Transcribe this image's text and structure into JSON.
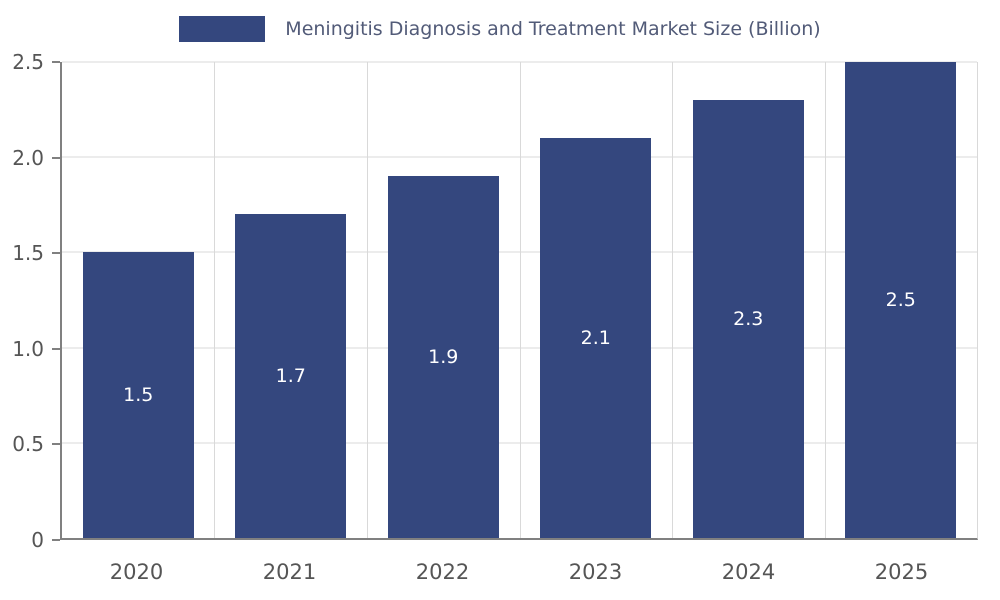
{
  "chart_data": {
    "type": "bar",
    "title": "Meningitis Diagnosis and Treatment Market Size (Billion)",
    "categories": [
      "2020",
      "2021",
      "2022",
      "2023",
      "2024",
      "2025"
    ],
    "values": [
      1.5,
      1.7,
      1.9,
      2.1,
      2.3,
      2.5
    ],
    "bar_labels": [
      "1.5",
      "1.7",
      "1.9",
      "2.1",
      "2.3",
      "2.5"
    ],
    "xlabel": "",
    "ylabel": "",
    "ylim": [
      0,
      2.5
    ],
    "yticks": [
      "0",
      "0.5",
      "1.0",
      "1.5",
      "2.0",
      "2.5"
    ],
    "grid": true,
    "legend_position": "top-center",
    "colors": {
      "bar": "#34477e",
      "bar_label": "#ffffff",
      "title": "#525b78",
      "tick": "#555555",
      "grid": "#d9d9d9",
      "axis": "#808080"
    }
  }
}
